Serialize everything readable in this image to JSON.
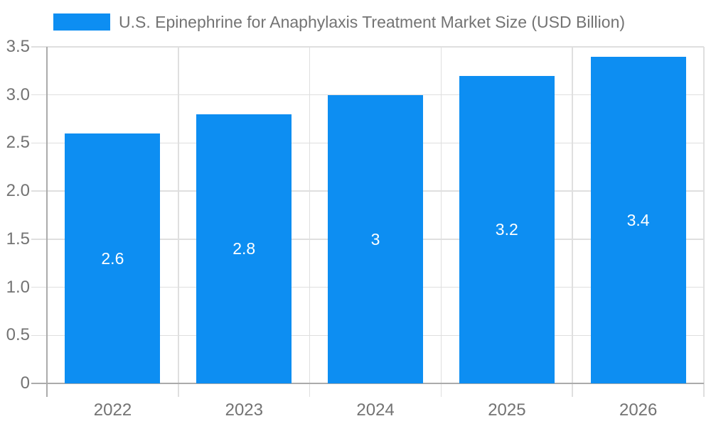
{
  "chart_data": {
    "type": "bar",
    "title": "U.S. Epinephrine for Anaphylaxis Treatment Market Size (USD Billion)",
    "legend": {
      "position": "top-left",
      "entries": [
        "U.S. Epinephrine for Anaphylaxis Treatment Market Size (USD Billion)"
      ]
    },
    "categories": [
      "2022",
      "2023",
      "2024",
      "2025",
      "2026"
    ],
    "values": [
      2.6,
      2.8,
      3,
      3.2,
      3.4
    ],
    "bar_labels": [
      "2.6",
      "2.8",
      "3",
      "3.2",
      "3.4"
    ],
    "xlabel": "",
    "ylabel": "",
    "ylim": [
      0,
      3.5
    ],
    "yticks": [
      {
        "label": "3.5",
        "value": 3.5
      },
      {
        "label": "3.0",
        "value": 3.0
      },
      {
        "label": "2.5",
        "value": 2.5
      },
      {
        "label": "2.0",
        "value": 2.0
      },
      {
        "label": "1.5",
        "value": 1.5
      },
      {
        "label": "1.0",
        "value": 1.0
      },
      {
        "label": "0.5",
        "value": 0.5
      },
      {
        "label": "0",
        "value": 0
      }
    ],
    "grid": true,
    "colors": {
      "bar": "#0d8ef2",
      "gridline": "#dfdfdf",
      "axis": "#ababab",
      "tick_text": "#737373",
      "bar_label_text": "#ffffff",
      "background": "#ffffff"
    }
  }
}
